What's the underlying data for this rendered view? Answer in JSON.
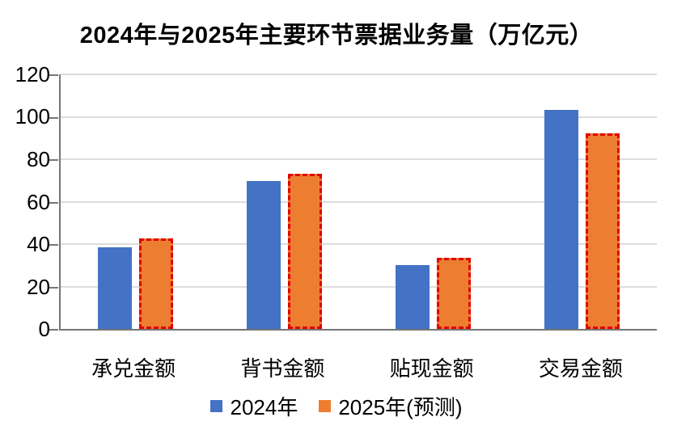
{
  "title": "2024年与2025年主要环节票据业务量（万亿元）",
  "chart_data": {
    "type": "bar",
    "title": "2024年与2025年主要环节票据业务量（万亿元）",
    "categories": [
      "承兑金额",
      "背书金额",
      "贴现金额",
      "交易金额"
    ],
    "series": [
      {
        "name": "2024年",
        "color": "#4472C4",
        "outline": "none",
        "values": [
          38.4,
          69.8,
          30.2,
          103.3
        ]
      },
      {
        "name": "2025年(预测)",
        "color": "#ED7D31",
        "outline": "dashed",
        "outline_color": "#E10000",
        "values": [
          42.5,
          73.0,
          33.5,
          92.2
        ]
      }
    ],
    "xlabel": "",
    "ylabel": "",
    "ylim": [
      0,
      120
    ],
    "yticks": [
      0,
      20,
      40,
      60,
      80,
      100,
      120
    ],
    "grid": "horizontal",
    "gridline_color": "#DCDCDC",
    "axis_color": "#767676",
    "legend_position": "bottom"
  }
}
